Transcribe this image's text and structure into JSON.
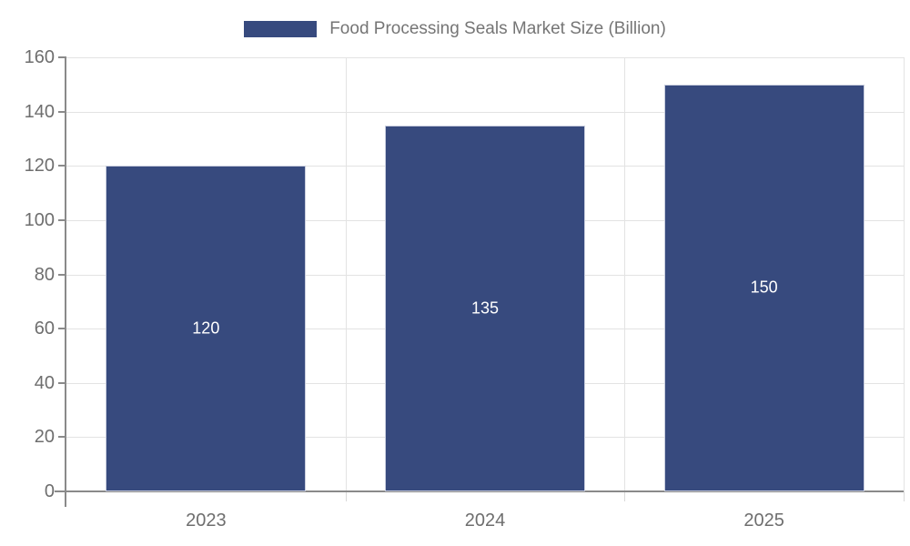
{
  "legend": {
    "label": "Food Processing Seals Market Size (Billion)"
  },
  "chart_data": {
    "type": "bar",
    "categories": [
      "2023",
      "2024",
      "2025"
    ],
    "values": [
      120,
      135,
      150
    ],
    "series_name": "Food Processing Seals Market Size (Billion)",
    "title": "",
    "xlabel": "",
    "ylabel": "",
    "ylim": [
      0,
      160
    ],
    "yticks": [
      0,
      20,
      40,
      60,
      80,
      100,
      120,
      140,
      160
    ],
    "grid": true,
    "legend_position": "top-center",
    "colors": {
      "bar_fill": "#374a7e",
      "bar_border": "#c9cede",
      "value_label": "#ffffff",
      "axis": "#8a8a8a",
      "gridline": "#e3e3e3",
      "tick_label": "#6e6e6e",
      "legend_text": "#757575"
    }
  }
}
